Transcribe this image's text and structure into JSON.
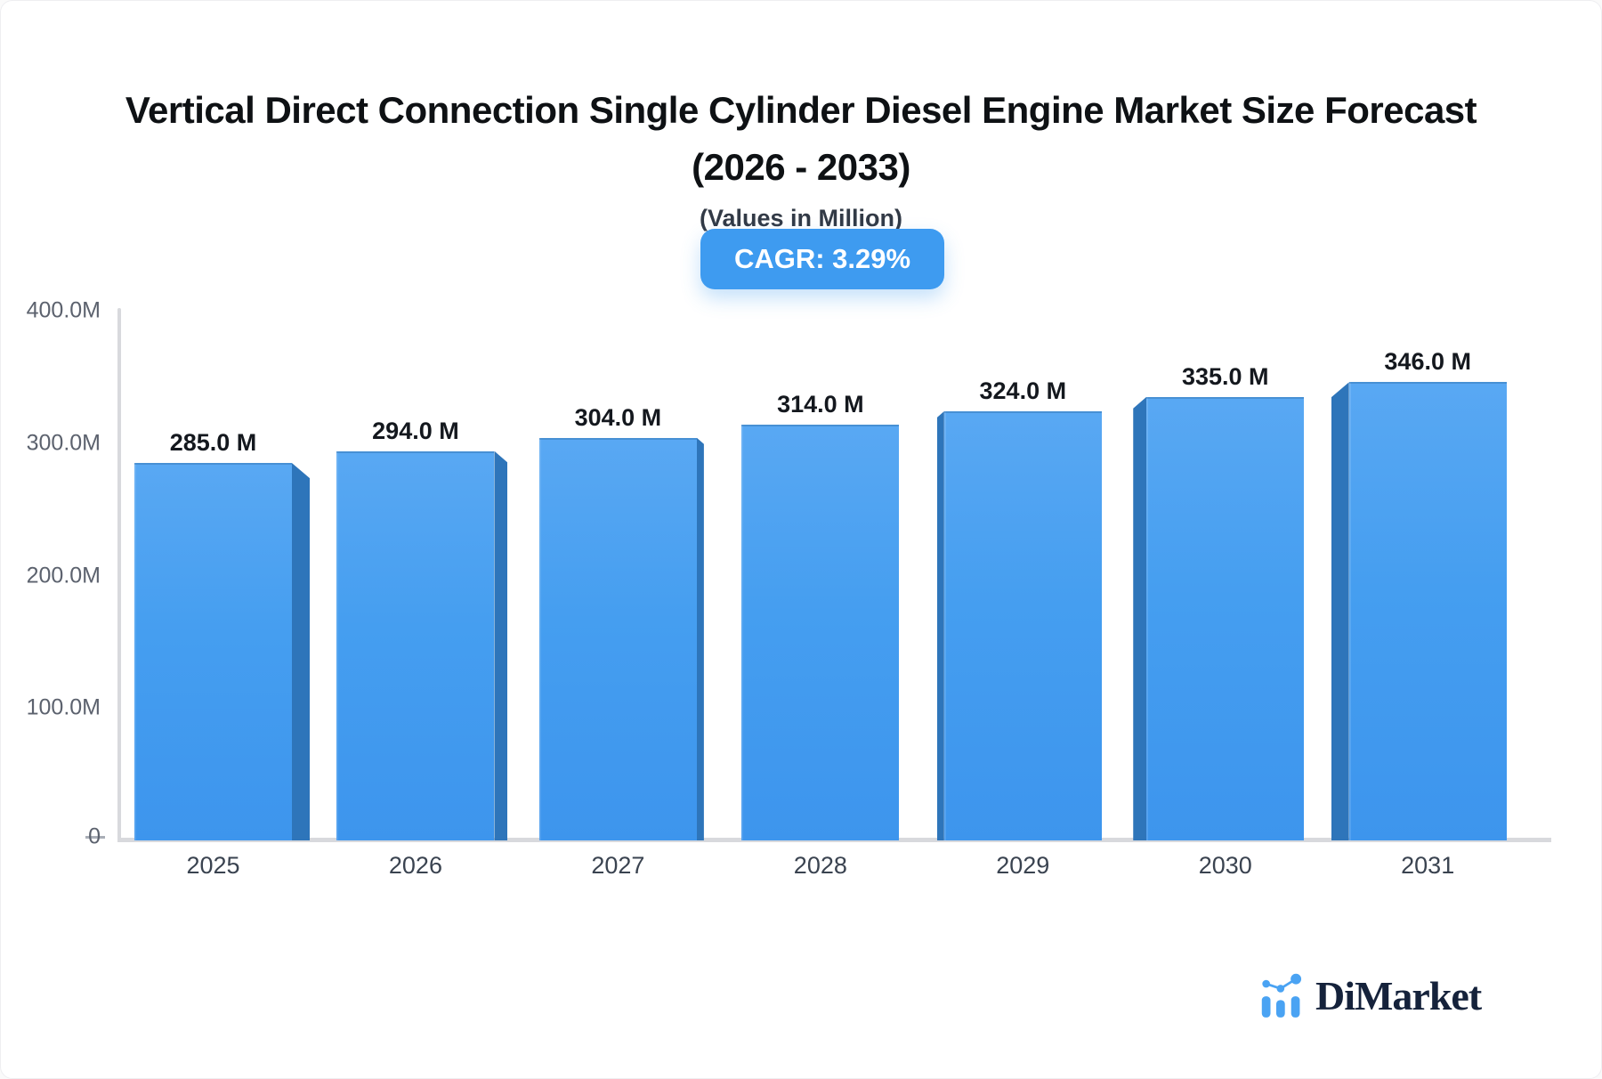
{
  "header": {
    "title_line1": "Vertical Direct Connection Single Cylinder Diesel Engine Market Size Forecast",
    "title_line2": "(2026 - 2033)",
    "subtitle": "(Values in Million)",
    "badge_label": "CAGR: 3.29%"
  },
  "colors": {
    "badge_bg": "#3e9bf0",
    "badge_text": "#ffffff",
    "bar_face": "#459ef0",
    "bar_side": "#2e75ba",
    "axis_line": "#d8d9dd",
    "logo_icon": "#4aa3f3",
    "logo_text": "#15223b"
  },
  "chart_data": {
    "type": "bar",
    "title": "Vertical Direct Connection Single Cylinder Diesel Engine Market Size Forecast (2026 - 2033)",
    "subtitle": "(Values in Million)",
    "annotation": "CAGR: 3.29%",
    "categories": [
      "2025",
      "2026",
      "2027",
      "2028",
      "2029",
      "2030",
      "2031"
    ],
    "values": [
      285,
      294,
      304,
      314,
      324,
      335,
      346
    ],
    "value_labels": [
      "285.0 M",
      "294.0 M",
      "304.0 M",
      "314.0 M",
      "324.0 M",
      "335.0 M",
      "346.0 M"
    ],
    "unit": "Million",
    "xlabel": "",
    "ylabel": "",
    "ylim": [
      0,
      400
    ],
    "y_ticks": [
      {
        "value": 400,
        "label": "400.0M"
      },
      {
        "value": 300,
        "label": "300.0M"
      },
      {
        "value": 200,
        "label": "200.0M"
      },
      {
        "value": 100,
        "label": "100.0M"
      },
      {
        "value": 0,
        "label": "0"
      }
    ],
    "grid": false,
    "legend": "none",
    "style": "3d-perspective-columns"
  },
  "logo": {
    "text": "DiMarket",
    "icon": "mini-bar-chart-icon"
  }
}
